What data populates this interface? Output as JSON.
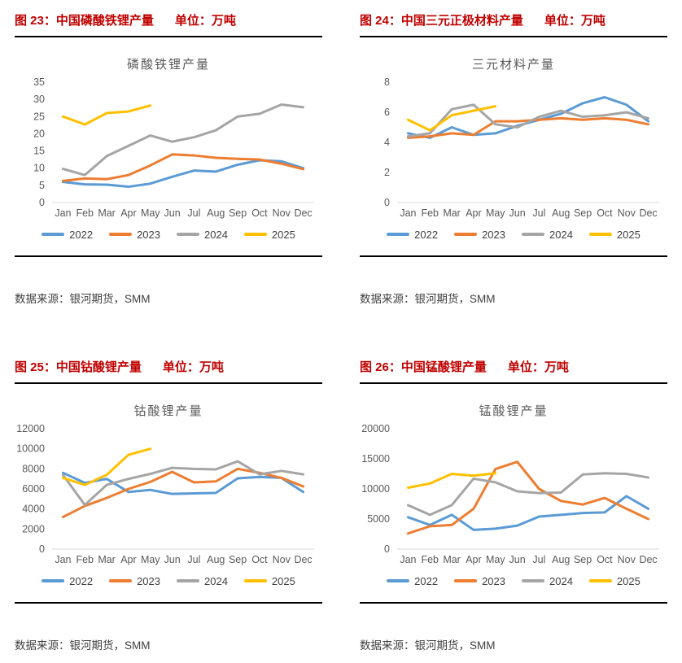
{
  "colors": {
    "header_red": "#C00000",
    "axis_text": "#595959",
    "axis_line": "#D9D9D9",
    "legend_text": "#404040",
    "series_2022": "#5B9BD5",
    "series_2023": "#ED7D31",
    "series_2024": "#A5A5A5",
    "series_2025": "#FFC000"
  },
  "panels": [
    {
      "figure_title": "图 23：中国磷酸铁锂产量",
      "unit": "单位：万吨",
      "source": "数据来源：银河期货，SMM"
    },
    {
      "figure_title": "图 24：中国三元正极材料产量",
      "unit": "单位：万吨",
      "source": "数据来源：银河期货，SMM"
    },
    {
      "figure_title": "图 25：中国钴酸锂产量",
      "unit": "单位：万吨",
      "source": "数据来源：银河期货，SMM"
    },
    {
      "figure_title": "图 26：中国锰酸锂产量",
      "unit": "单位：万吨",
      "source": "数据来源：银河期货，SMM"
    }
  ],
  "chart_data": [
    {
      "type": "line",
      "title": "磷酸铁锂产量",
      "categories": [
        "Jan",
        "Feb",
        "Mar",
        "Apr",
        "May",
        "Jun",
        "Jul",
        "Aug",
        "Sep",
        "Oct",
        "Nov",
        "Dec"
      ],
      "ylim": [
        0,
        35
      ],
      "ystep": 5,
      "grid": false,
      "legend_position": "bottom",
      "series": [
        {
          "name": "2022",
          "color": "#5B9BD5",
          "values": [
            6.0,
            5.3,
            5.2,
            4.6,
            5.5,
            7.5,
            9.3,
            9.0,
            11.0,
            12.3,
            12.0,
            10.0
          ]
        },
        {
          "name": "2023",
          "color": "#ED7D31",
          "values": [
            6.3,
            7.0,
            6.8,
            8.0,
            10.8,
            14.0,
            13.7,
            13.0,
            12.7,
            12.5,
            11.3,
            9.7
          ]
        },
        {
          "name": "2024",
          "color": "#A5A5A5",
          "values": [
            9.8,
            8.0,
            13.5,
            16.5,
            19.5,
            17.7,
            19.0,
            21.0,
            25.0,
            25.8,
            28.5,
            27.7
          ]
        },
        {
          "name": "2025",
          "color": "#FFC000",
          "values": [
            25.0,
            22.7,
            26.0,
            26.5,
            28.2
          ]
        }
      ]
    },
    {
      "type": "line",
      "title": "三元材料产量",
      "categories": [
        "Jan",
        "Feb",
        "Mar",
        "Apr",
        "May",
        "Jun",
        "Jul",
        "Aug",
        "Sep",
        "Oct",
        "Nov",
        "Dec"
      ],
      "ylim": [
        0,
        8
      ],
      "ystep": 2,
      "grid": false,
      "legend_position": "bottom",
      "series": [
        {
          "name": "2022",
          "color": "#5B9BD5",
          "values": [
            4.6,
            4.3,
            5.0,
            4.5,
            4.6,
            5.1,
            5.5,
            5.9,
            6.6,
            7.0,
            6.5,
            5.4
          ]
        },
        {
          "name": "2023",
          "color": "#ED7D31",
          "values": [
            4.3,
            4.4,
            4.6,
            4.5,
            5.4,
            5.4,
            5.5,
            5.6,
            5.5,
            5.6,
            5.5,
            5.2
          ]
        },
        {
          "name": "2024",
          "color": "#A5A5A5",
          "values": [
            4.4,
            4.6,
            6.2,
            6.5,
            5.2,
            5.0,
            5.7,
            6.1,
            5.7,
            5.8,
            6.0,
            5.6
          ]
        },
        {
          "name": "2025",
          "color": "#FFC000",
          "values": [
            5.5,
            4.8,
            5.8,
            6.1,
            6.4
          ]
        }
      ]
    },
    {
      "type": "line",
      "title": "钴酸锂产量",
      "categories": [
        "Jan",
        "Feb",
        "Mar",
        "Apr",
        "May",
        "Jun",
        "Jul",
        "Aug",
        "Sep",
        "Oct",
        "Nov",
        "Dec"
      ],
      "ylim": [
        0,
        12000
      ],
      "ystep": 2000,
      "grid": false,
      "legend_position": "bottom",
      "series": [
        {
          "name": "2022",
          "color": "#5B9BD5",
          "values": [
            7600,
            6600,
            7000,
            5700,
            5900,
            5500,
            5550,
            5600,
            7050,
            7200,
            7100,
            5700
          ]
        },
        {
          "name": "2023",
          "color": "#ED7D31",
          "values": [
            3200,
            4300,
            5100,
            6000,
            6700,
            7700,
            6650,
            6750,
            8000,
            7600,
            7100,
            6250
          ]
        },
        {
          "name": "2024",
          "color": "#A5A5A5",
          "values": [
            7400,
            4400,
            6400,
            7000,
            7500,
            8100,
            8000,
            7950,
            8750,
            7450,
            7800,
            7450
          ]
        },
        {
          "name": "2025",
          "color": "#FFC000",
          "values": [
            7100,
            6400,
            7400,
            9400,
            10000
          ]
        }
      ]
    },
    {
      "type": "line",
      "title": "锰酸锂产量",
      "categories": [
        "Jan",
        "Feb",
        "Mar",
        "Apr",
        "May",
        "Jun",
        "Jul",
        "Aug",
        "Sep",
        "Oct",
        "Nov",
        "Dec"
      ],
      "ylim": [
        0,
        20000
      ],
      "ystep": 5000,
      "grid": false,
      "legend_position": "bottom",
      "series": [
        {
          "name": "2022",
          "color": "#5B9BD5",
          "values": [
            5300,
            4000,
            5700,
            3200,
            3400,
            3900,
            5400,
            5700,
            6000,
            6100,
            8800,
            6700
          ]
        },
        {
          "name": "2023",
          "color": "#ED7D31",
          "values": [
            2600,
            3800,
            4000,
            6700,
            13300,
            14500,
            10000,
            8000,
            7400,
            8500,
            6700,
            5000
          ]
        },
        {
          "name": "2024",
          "color": "#A5A5A5",
          "values": [
            7300,
            5700,
            7300,
            11700,
            11100,
            9600,
            9300,
            9400,
            12400,
            12600,
            12500,
            11900
          ]
        },
        {
          "name": "2025",
          "color": "#FFC000",
          "values": [
            10200,
            10900,
            12500,
            12200,
            12600
          ]
        }
      ]
    }
  ]
}
